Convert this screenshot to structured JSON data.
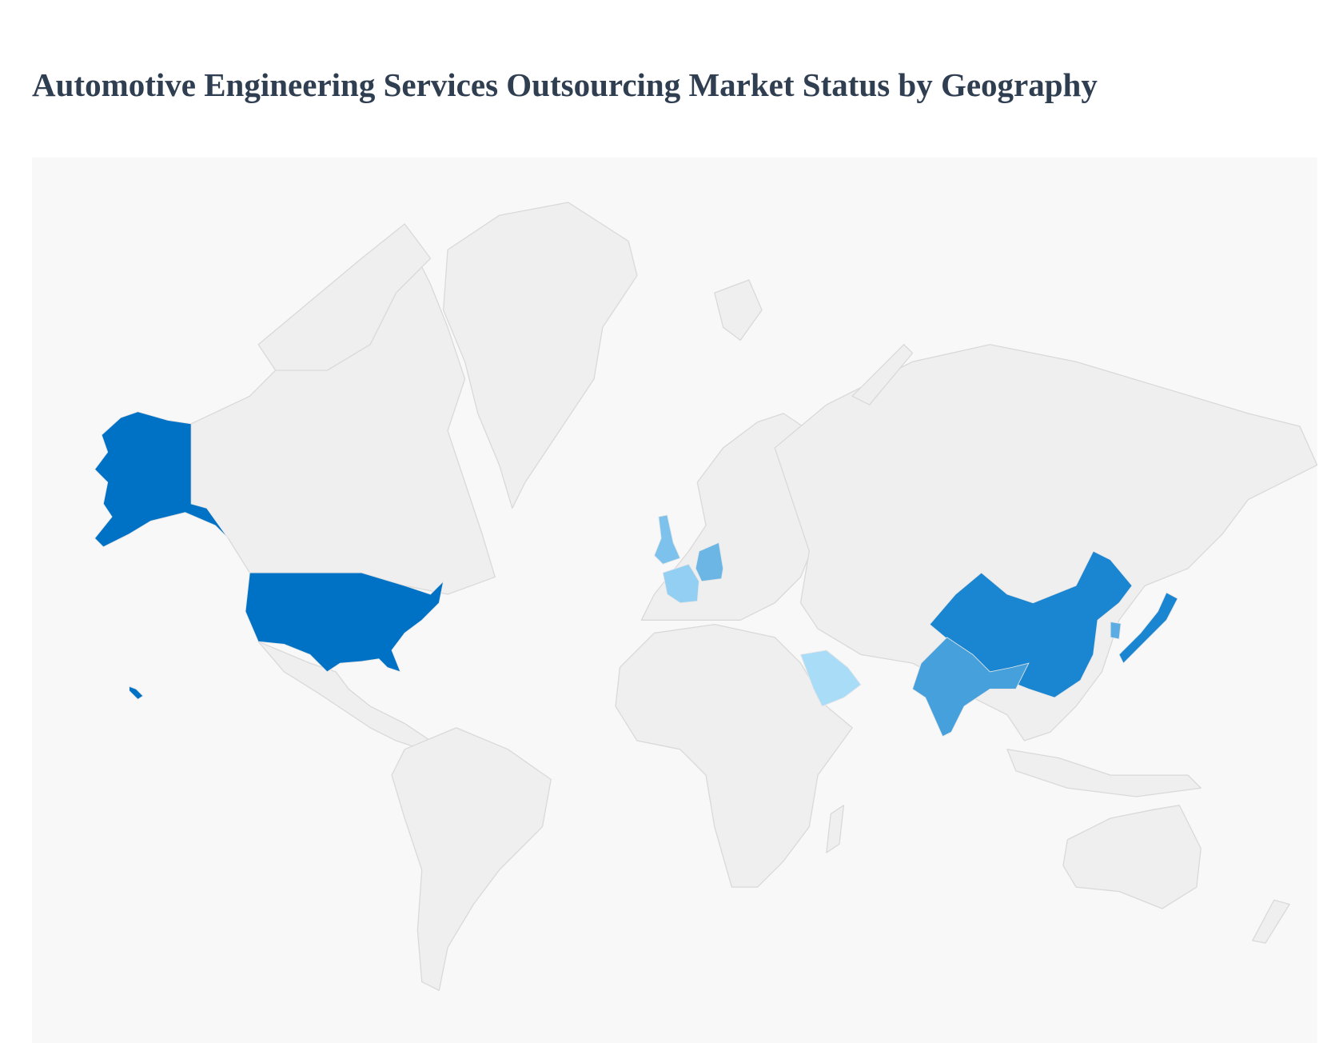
{
  "header": {
    "title": "Automotive Engineering Services Outsourcing Market Status by Geography"
  }
}
